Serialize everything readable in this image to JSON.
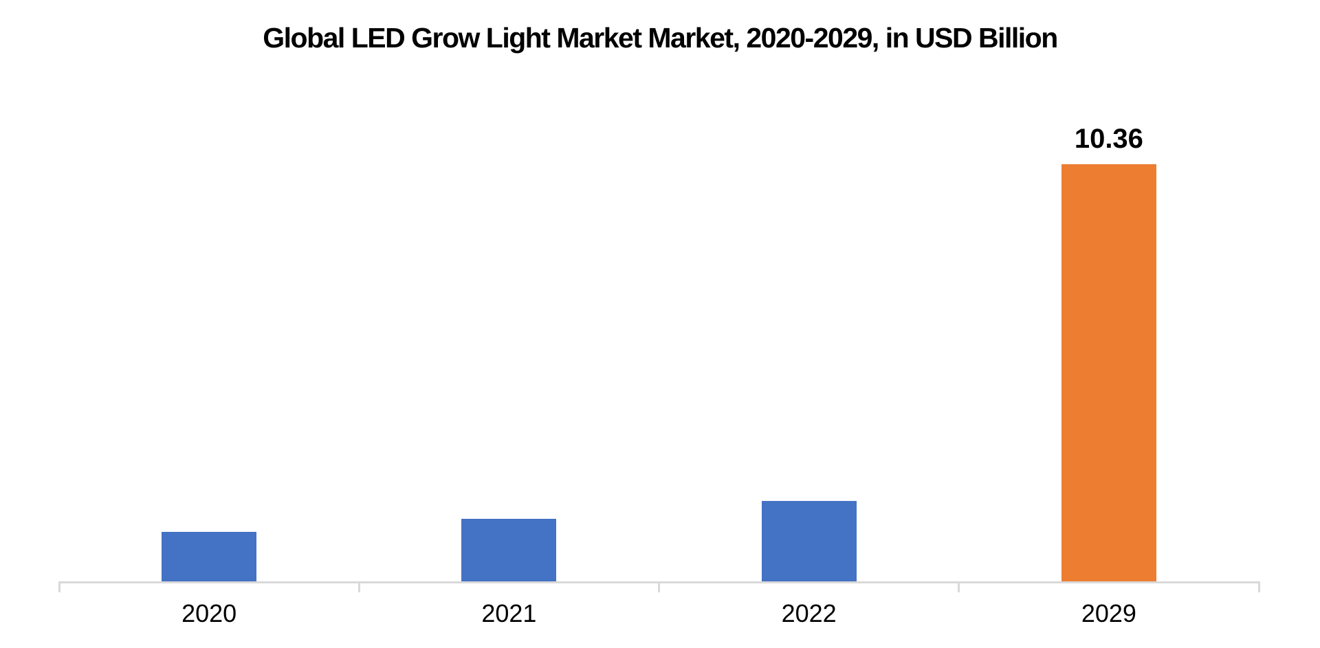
{
  "chart_data": {
    "type": "bar",
    "title": "Global LED Grow Light Market Market, 2020-2029, in USD Billion",
    "categories": [
      "2020",
      "2021",
      "2022",
      "2029"
    ],
    "values": [
      1.24,
      1.57,
      2.01,
      10.36
    ],
    "value_labels": [
      "",
      "",
      "",
      "10.36"
    ],
    "series_unit": "USD Billion",
    "bar_colors": [
      "#4472c4",
      "#4472c4",
      "#4472c4",
      "#ed7d31"
    ],
    "axis_color": "#d9d9d9",
    "text_color": "#000000",
    "background_color": "#ffffff",
    "xlabel": "",
    "ylabel": "",
    "y_axis_visible": false,
    "grid": false,
    "legend": false
  }
}
